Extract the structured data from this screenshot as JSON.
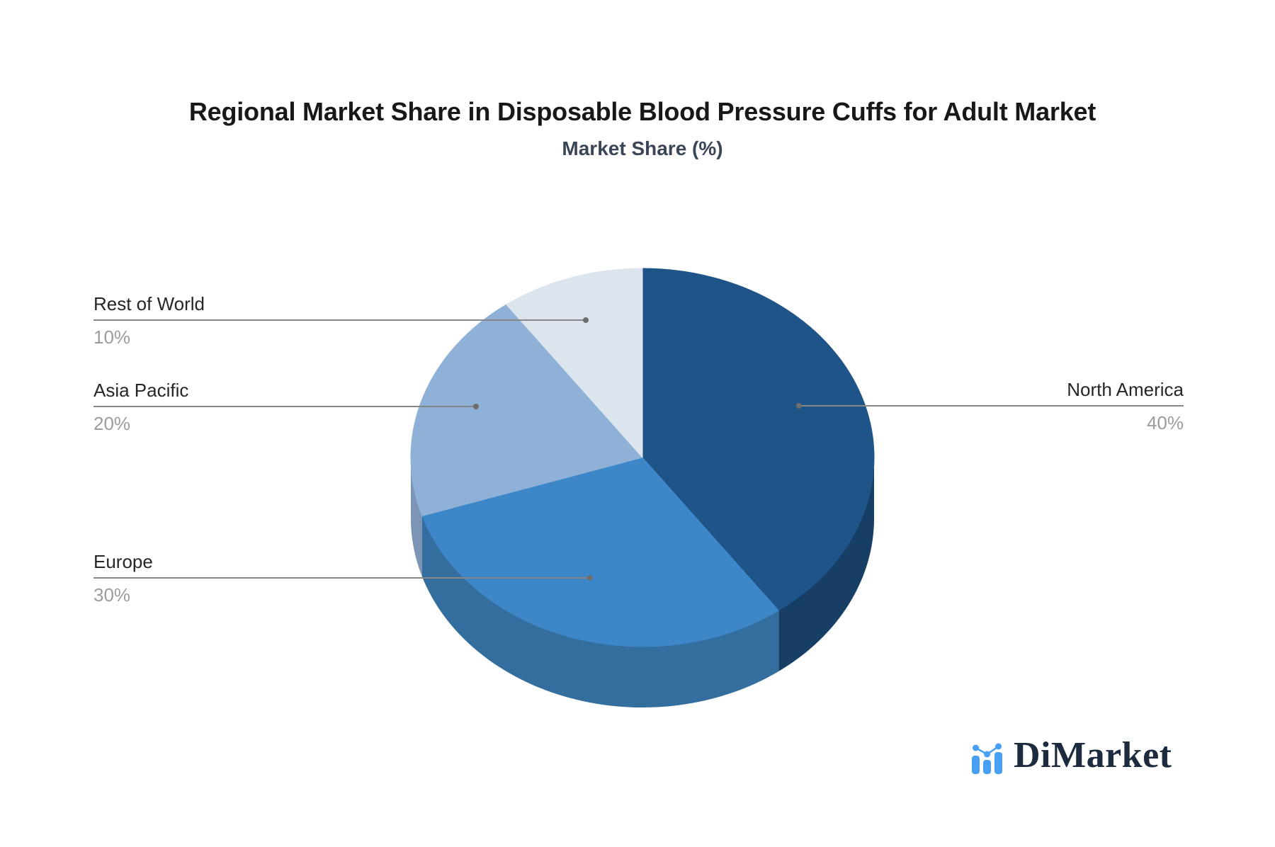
{
  "chart_data": {
    "type": "pie",
    "style": "3d",
    "title": "Regional Market Share in Disposable Blood Pressure Cuffs for Adult Market",
    "subtitle": "Market Share (%)",
    "unit": "%",
    "start_angle_deg": 0,
    "direction": "clockwise",
    "legend": "none",
    "label_style": "leader-lines",
    "slices": [
      {
        "label": "North America",
        "value": 40,
        "value_label": "40%",
        "color": "#1E5487",
        "side_color": "#173E64"
      },
      {
        "label": "Europe",
        "value": 30,
        "value_label": "30%",
        "color": "#3D86C7",
        "side_color": "#336E9E"
      },
      {
        "label": "Asia Pacific",
        "value": 20,
        "value_label": "20%",
        "color": "#8FB1D7",
        "side_color": "#7C95B7"
      },
      {
        "label": "Rest of World",
        "value": 10,
        "value_label": "10%",
        "color": "#DCE4EE",
        "side_color": "#B9C6D8"
      }
    ],
    "colors": {
      "title": "#181818",
      "subtitle": "#3A4556",
      "label_text": "#262626",
      "value_text": "#9C9C9C",
      "leader_line": "#878787",
      "leader_dot": "#6E6E6E"
    }
  },
  "branding": {
    "logo_text": "DiMarket",
    "logo_icon": "bar-chart-trend-icon",
    "logo_text_color": "#1C2B3E",
    "logo_icon_color": "#47A0F4"
  }
}
